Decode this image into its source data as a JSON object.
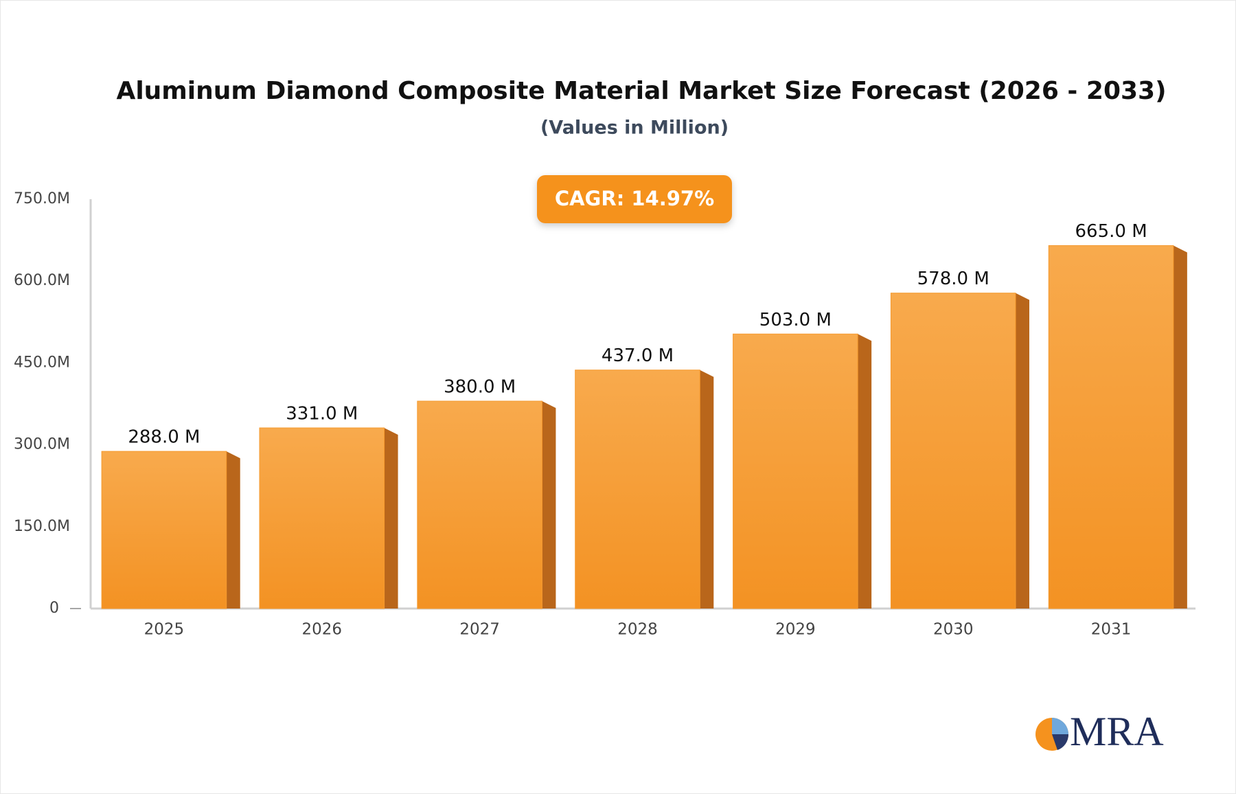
{
  "chart_data": {
    "type": "bar",
    "title": "Aluminum Diamond Composite Material Market Size Forecast (2026 - 2033)",
    "subtitle": "(Values in Million)",
    "annotation": "CAGR: 14.97%",
    "categories": [
      "2025",
      "2026",
      "2027",
      "2028",
      "2029",
      "2030",
      "2031"
    ],
    "values": [
      288,
      331,
      380,
      437,
      503,
      578,
      665
    ],
    "value_labels": [
      "288.0 M",
      "331.0 M",
      "380.0 M",
      "437.0 M",
      "503.0 M",
      "578.0 M",
      "665.0 M"
    ],
    "color": "#f59a2f",
    "ylim": [
      0,
      750
    ],
    "yticks": [
      0,
      {
        "value": 150,
        "label": "150.0M"
      },
      {
        "value": 300,
        "label": "300.0M"
      },
      {
        "value": 450,
        "label": "450.0M"
      },
      {
        "value": 600,
        "label": "600.0M"
      },
      {
        "value": 750,
        "label": "750.0M"
      }
    ],
    "grid": false
  },
  "logo": "MRA"
}
